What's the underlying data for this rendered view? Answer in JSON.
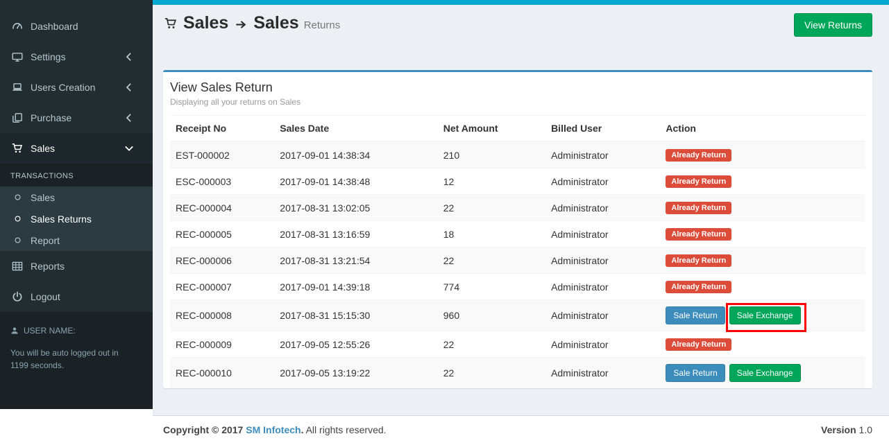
{
  "sidebar": {
    "items": {
      "dashboard": {
        "label": "Dashboard"
      },
      "settings": {
        "label": "Settings"
      },
      "users_creation": {
        "label": "Users Creation"
      },
      "purchase": {
        "label": "Purchase"
      },
      "sales": {
        "label": "Sales"
      },
      "reports": {
        "label": "Reports"
      },
      "logout": {
        "label": "Logout"
      }
    },
    "section_label": "TRANSACTIONS",
    "sub_items": {
      "sales": {
        "label": "Sales"
      },
      "sales_returns": {
        "label": "Sales Returns"
      },
      "report": {
        "label": "Report"
      }
    },
    "user_label": "USER NAME:",
    "logout_notice": "You will be auto logged out in 1199 seconds."
  },
  "header": {
    "title_primary": "Sales",
    "title_secondary": "Sales",
    "title_suffix": "Returns",
    "view_returns_button": "View Returns"
  },
  "card": {
    "title": "View Sales Return",
    "subtitle": "Displaying all your returns on Sales"
  },
  "table": {
    "columns": [
      "Receipt No",
      "Sales Date",
      "Net Amount",
      "Billed User",
      "Action"
    ],
    "rows": [
      {
        "receipt_no": "EST-000002",
        "sales_date": "2017-09-01 14:38:34",
        "net_amount": "210",
        "billed_user": "Administrator",
        "actions": [
          {
            "type": "already_return"
          }
        ]
      },
      {
        "receipt_no": "ESC-000003",
        "sales_date": "2017-09-01 14:38:48",
        "net_amount": "12",
        "billed_user": "Administrator",
        "actions": [
          {
            "type": "already_return"
          }
        ]
      },
      {
        "receipt_no": "REC-000004",
        "sales_date": "2017-08-31 13:02:05",
        "net_amount": "22",
        "billed_user": "Administrator",
        "actions": [
          {
            "type": "already_return"
          }
        ]
      },
      {
        "receipt_no": "REC-000005",
        "sales_date": "2017-08-31 13:16:59",
        "net_amount": "18",
        "billed_user": "Administrator",
        "actions": [
          {
            "type": "already_return"
          }
        ]
      },
      {
        "receipt_no": "REC-000006",
        "sales_date": "2017-08-31 13:21:54",
        "net_amount": "22",
        "billed_user": "Administrator",
        "actions": [
          {
            "type": "already_return"
          }
        ]
      },
      {
        "receipt_no": "REC-000007",
        "sales_date": "2017-09-01 14:39:18",
        "net_amount": "774",
        "billed_user": "Administrator",
        "actions": [
          {
            "type": "already_return"
          }
        ]
      },
      {
        "receipt_no": "REC-000008",
        "sales_date": "2017-08-31 15:15:30",
        "net_amount": "960",
        "billed_user": "Administrator",
        "actions": [
          {
            "type": "sale_return"
          },
          {
            "type": "sale_exchange",
            "highlighted": true
          }
        ]
      },
      {
        "receipt_no": "REC-000009",
        "sales_date": "2017-09-05 12:55:26",
        "net_amount": "22",
        "billed_user": "Administrator",
        "actions": [
          {
            "type": "already_return"
          }
        ]
      },
      {
        "receipt_no": "REC-000010",
        "sales_date": "2017-09-05 13:19:22",
        "net_amount": "22",
        "billed_user": "Administrator",
        "actions": [
          {
            "type": "sale_return"
          },
          {
            "type": "sale_exchange"
          }
        ]
      }
    ]
  },
  "action_labels": {
    "already_return": "Already Return",
    "sale_return": "Sale Return",
    "sale_exchange": "Sale Exchange"
  },
  "footer": {
    "copyright_bold": "Copyright © 2017",
    "brand": "SM Infotech",
    "brand_suffix": ".",
    "rights": "All rights reserved.",
    "version_label": "Version",
    "version_number": "1.0"
  },
  "colors": {
    "accent_blue": "#3c8dbc",
    "success_green": "#00a65a",
    "danger_red": "#dd4b39",
    "top_bar_blue": "#00a9d2",
    "sidebar_bg": "#222d32",
    "content_bg": "#ecf0f5",
    "annotation_red": "#ff0000"
  }
}
